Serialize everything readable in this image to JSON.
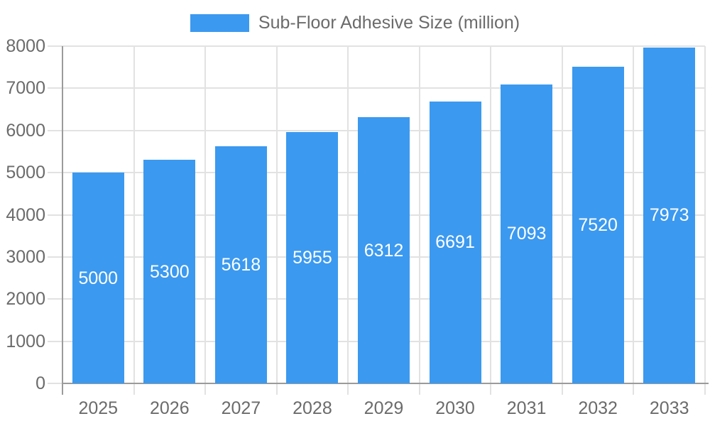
{
  "legend": {
    "label": "Sub-Floor Adhesive Size (million)"
  },
  "chart_data": {
    "type": "bar",
    "title": "",
    "series_name": "Sub-Floor Adhesive Size (million)",
    "categories": [
      "2025",
      "2026",
      "2027",
      "2028",
      "2029",
      "2030",
      "2031",
      "2032",
      "2033"
    ],
    "values": [
      5000,
      5300,
      5618,
      5955,
      6312,
      6691,
      7093,
      7520,
      7973
    ],
    "value_labels": [
      "5000",
      "5300",
      "5618",
      "5955",
      "6312",
      "6691",
      "7093",
      "7520",
      "7973"
    ],
    "xlabel": "",
    "ylabel": "",
    "ylim": [
      0,
      8000
    ],
    "ytick_interval": 1000,
    "ytick_labels": [
      "0",
      "1000",
      "2000",
      "3000",
      "4000",
      "5000",
      "6000",
      "7000",
      "8000"
    ],
    "grid": true,
    "legend_position": "top",
    "colors": {
      "bar": "#3b99f0",
      "grid": "#e2e2e2",
      "axis": "#9b9b9b",
      "tick_text": "#6b6b6b",
      "value_text": "#ffffff"
    }
  }
}
